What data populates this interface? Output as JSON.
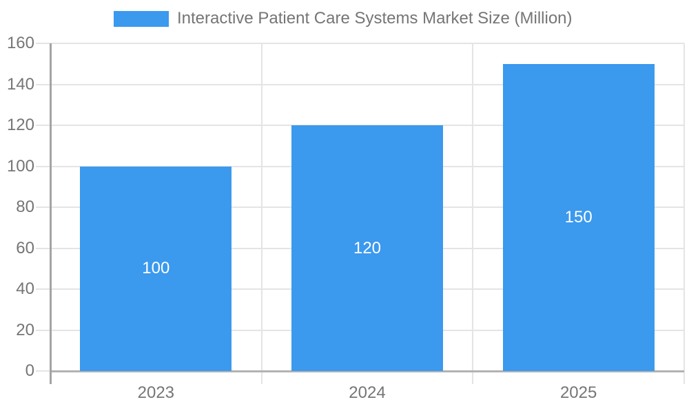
{
  "legend": {
    "label": "Interactive Patient Care Systems Market Size (Million)"
  },
  "chart_data": {
    "type": "bar",
    "title": "Interactive Patient Care Systems Market Size (Million)",
    "categories": [
      "2023",
      "2024",
      "2025"
    ],
    "values": [
      100,
      120,
      150
    ],
    "bar_labels": [
      "100",
      "120",
      "150"
    ],
    "xlabel": "",
    "ylabel": "",
    "ylim": [
      0,
      160
    ],
    "yticks": [
      0,
      20,
      40,
      60,
      80,
      100,
      120,
      140,
      160
    ],
    "grid": true,
    "legend_position": "top",
    "colors": {
      "bar": "#3b99ee",
      "bar_label_text": "#ffffff",
      "axis_text": "#757575",
      "gridline": "#e4e4e4",
      "baseline": "#b2b2b2",
      "axis_line": "#a3a3a3",
      "background": "#ffffff"
    }
  }
}
